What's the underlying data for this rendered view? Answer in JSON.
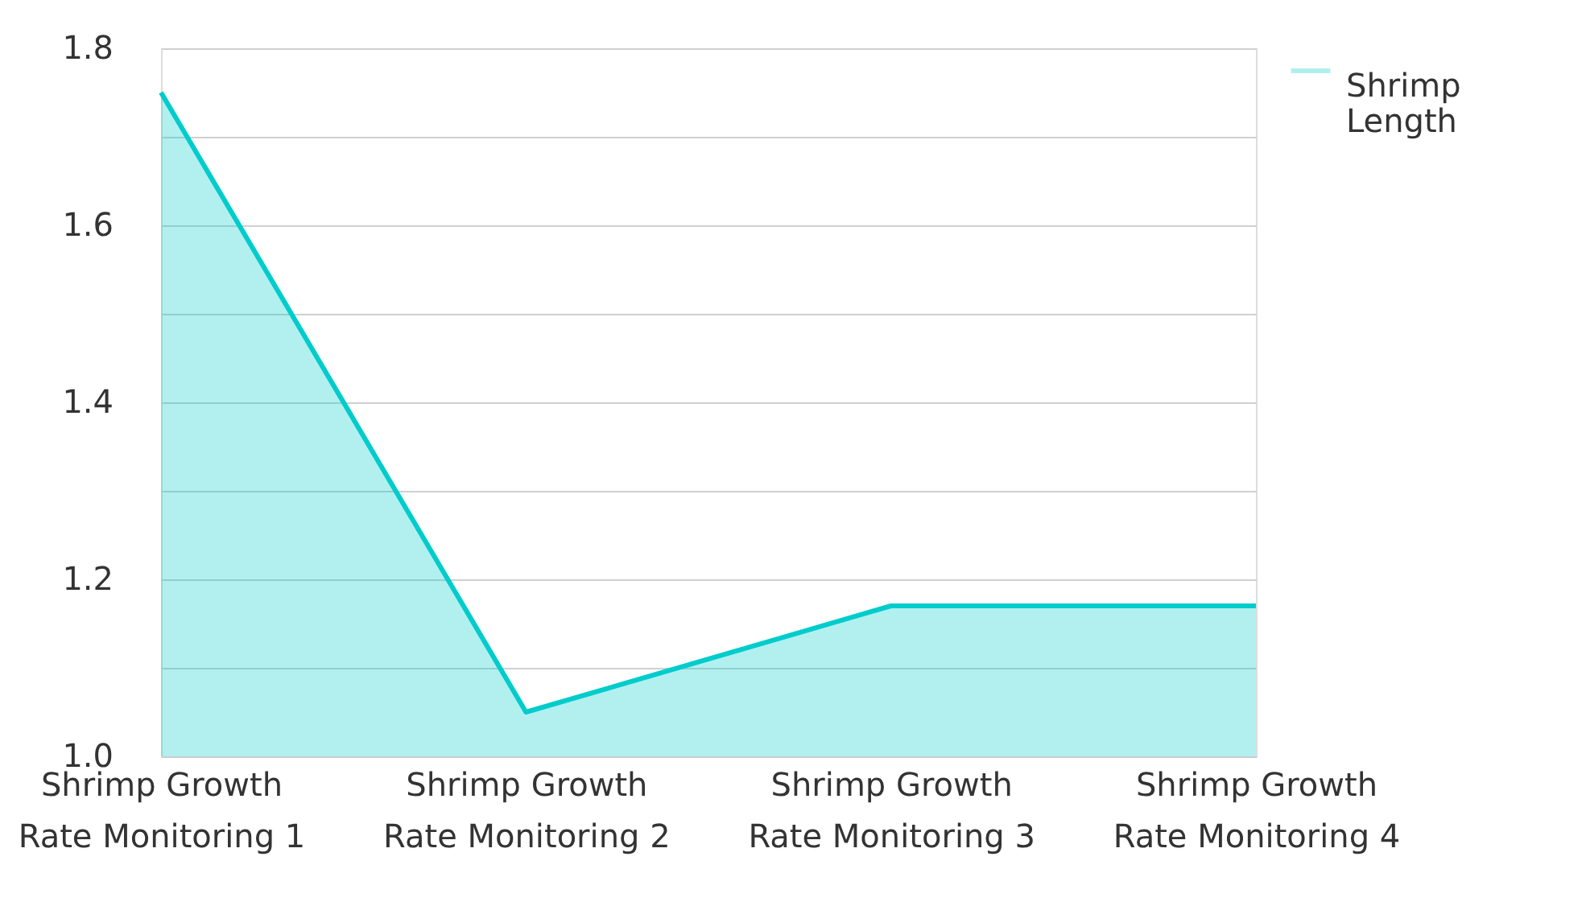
{
  "chart_data": {
    "type": "area",
    "categories": [
      "Shrimp Growth Rate Monitoring 1",
      "Shrimp Growth Rate Monitoring 2",
      "Shrimp Growth Rate Monitoring 3",
      "Shrimp Growth Rate Monitoring 4"
    ],
    "series": [
      {
        "name": "Shrimp Length",
        "color": "#00cccc",
        "values": [
          1.75,
          1.05,
          1.17,
          1.17
        ]
      }
    ],
    "ylim": [
      1.0,
      1.8
    ],
    "yticks": [
      {
        "value": 1.0,
        "label": "1.0"
      },
      {
        "value": 1.1,
        "label": null
      },
      1.2,
      {
        "value": 1.3,
        "label": null
      },
      1.4,
      {
        "value": 1.5,
        "label": null
      },
      1.6,
      {
        "value": 1.7,
        "label": null
      },
      1.8
    ],
    "grid": "y",
    "legend": "top right"
  }
}
